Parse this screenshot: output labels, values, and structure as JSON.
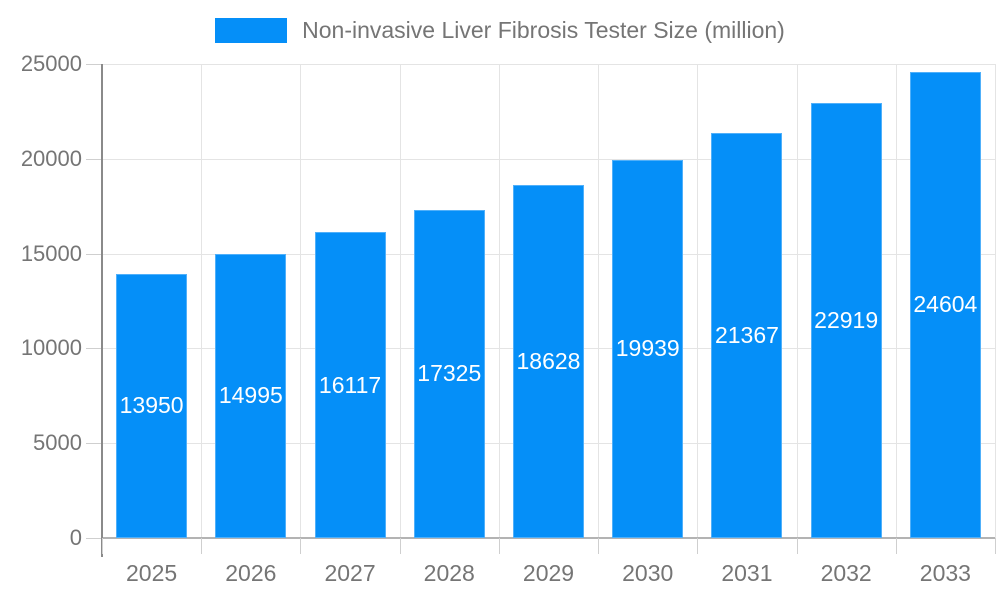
{
  "chart_data": {
    "type": "bar",
    "title": "Non-invasive Liver Fibrosis Tester Size (million)",
    "series_name": "Non-invasive Liver Fibrosis Tester Size (million)",
    "categories": [
      "2025",
      "2026",
      "2027",
      "2028",
      "2029",
      "2030",
      "2031",
      "2032",
      "2033"
    ],
    "values": [
      13950,
      14995,
      16117,
      17325,
      18628,
      19939,
      21367,
      22919,
      24604
    ],
    "xlabel": "",
    "ylabel": "",
    "ylim": [
      0,
      25000
    ],
    "y_ticks": [
      0,
      5000,
      10000,
      15000,
      20000,
      25000
    ],
    "grid": true,
    "legend_position": "top-center",
    "bar_labels": "inside-center",
    "colors": {
      "bar": "#058FF8",
      "bar_edge": "#5FB7F9",
      "grid": "#e4e4e4",
      "y_axis": "#8a8a8a",
      "x_axis": "#b3b3b3",
      "tick": "#cfcfcf",
      "text": "#757575",
      "bar_label_text": "#ffffff",
      "background": "#ffffff"
    }
  }
}
